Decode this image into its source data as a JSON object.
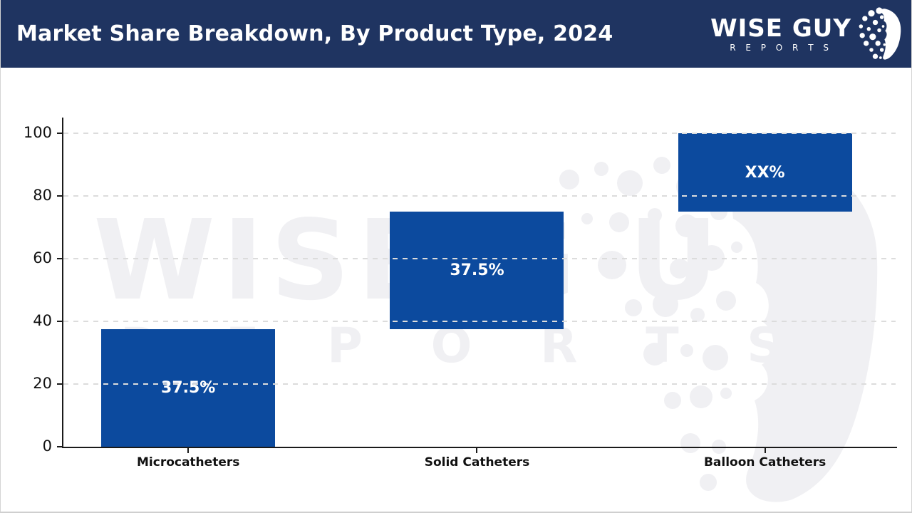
{
  "header": {
    "title": "Market Share Breakdown, By Product Type, 2024",
    "logo": {
      "wordmark": "WISE GUY",
      "subtitle": "R E P O R T S"
    }
  },
  "watermark": {
    "wordmark": "WISE G U Y",
    "subtitle": "R E P O R T S"
  },
  "colors": {
    "header_bg": "#1f3461",
    "title_text": "#ffffff",
    "bar": "#0c4a9e",
    "bar_label": "#ffffff",
    "grid": "#dcdcdc",
    "axis": "#1a1a1a",
    "tick_text": "#111111",
    "category_text": "#111111",
    "watermark": "#f0f0f3"
  },
  "chart_data": {
    "type": "bar",
    "subtype": "floating-waterfall-columns",
    "title": "Market Share Breakdown, By Product Type, 2024",
    "categories": [
      "Microcatheters",
      "Solid Catheters",
      "Balloon Catheters"
    ],
    "bars": [
      {
        "category": "Microcatheters",
        "start": 0,
        "end": 37.5,
        "label": "37.5%"
      },
      {
        "category": "Solid Catheters",
        "start": 37.5,
        "end": 75,
        "label": "37.5%"
      },
      {
        "category": "Balloon Catheters",
        "start": 75,
        "end": 100,
        "label": "XX%"
      }
    ],
    "xlabel": "",
    "ylabel": "",
    "ylim": [
      0,
      100
    ],
    "yticks": [
      0,
      20,
      40,
      60,
      80,
      100
    ],
    "grid": "horizontal-dashed",
    "gridlines_drawn_over_bars": true,
    "legend": "none"
  }
}
